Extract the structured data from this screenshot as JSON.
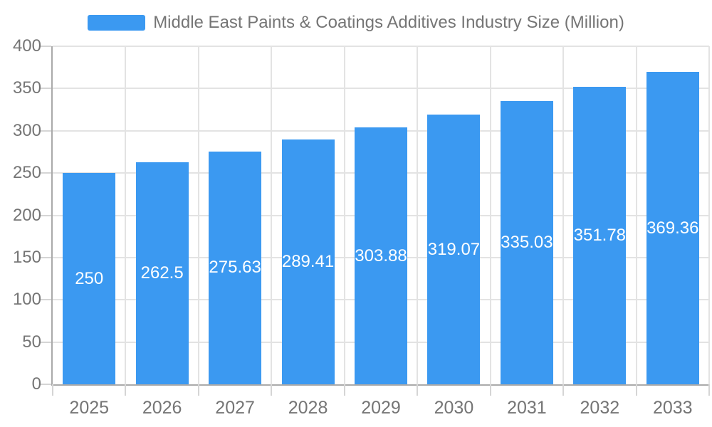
{
  "legend": {
    "label": "Middle East Paints & Coatings Additives Industry Size (Million)"
  },
  "colors": {
    "bar": "#3b99f1",
    "text": "#757575",
    "value_label": "#ffffff",
    "axis_line": "#aaaaaa",
    "gridline": "#e3e3e3",
    "tick": "#d5d5d5",
    "background": "#ffffff"
  },
  "chart_data": {
    "type": "bar",
    "title": "Middle East Paints & Coatings Additives Industry Size (Million)",
    "categories": [
      "2025",
      "2026",
      "2027",
      "2028",
      "2029",
      "2030",
      "2031",
      "2032",
      "2033"
    ],
    "values": [
      250,
      262.5,
      275.63,
      289.41,
      303.88,
      319.07,
      335.03,
      351.78,
      369.36
    ],
    "value_labels": [
      "250",
      "262.5",
      "275.63",
      "289.41",
      "303.88",
      "319.07",
      "335.03",
      "351.78",
      "369.36"
    ],
    "xlabel": "",
    "ylabel": "",
    "ylim": [
      0,
      400
    ],
    "ytick_step": 50,
    "yticks": [
      "0",
      "50",
      "100",
      "150",
      "200",
      "250",
      "300",
      "350",
      "400"
    ],
    "grid": true,
    "legend_position": "top",
    "value_label_position": "center-of-bar"
  }
}
